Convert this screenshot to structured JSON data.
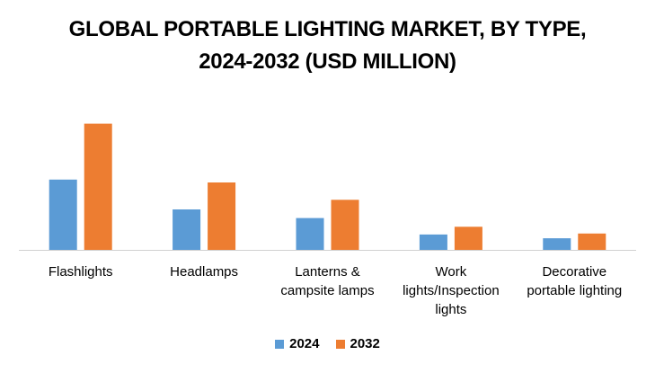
{
  "chart_data": {
    "type": "bar",
    "title_line1": "GLOBAL PORTABLE LIGHTING MARKET, BY TYPE,",
    "title_line2": "2024-2032 (USD MILLION)",
    "categories": [
      "Flashlights",
      "Headlamps",
      "Lanterns & campsite lamps",
      "Work lights/Inspection lights",
      "Decorative portable lighting"
    ],
    "category_lines": [
      [
        "Flashlights"
      ],
      [
        "Headlamps"
      ],
      [
        "Lanterns &",
        "campsite lamps"
      ],
      [
        "Work",
        "lights/Inspection",
        "lights"
      ],
      [
        "Decorative",
        "portable lighting"
      ]
    ],
    "series": [
      {
        "name": "2024",
        "color": "#5B9BD5",
        "values": [
          73,
          42,
          33,
          16,
          12
        ]
      },
      {
        "name": "2032",
        "color": "#ED7D31",
        "values": [
          131,
          70,
          52,
          24,
          17
        ]
      }
    ],
    "ylim": [
      0,
      140
    ],
    "grid": false,
    "legend_position": "bottom"
  }
}
